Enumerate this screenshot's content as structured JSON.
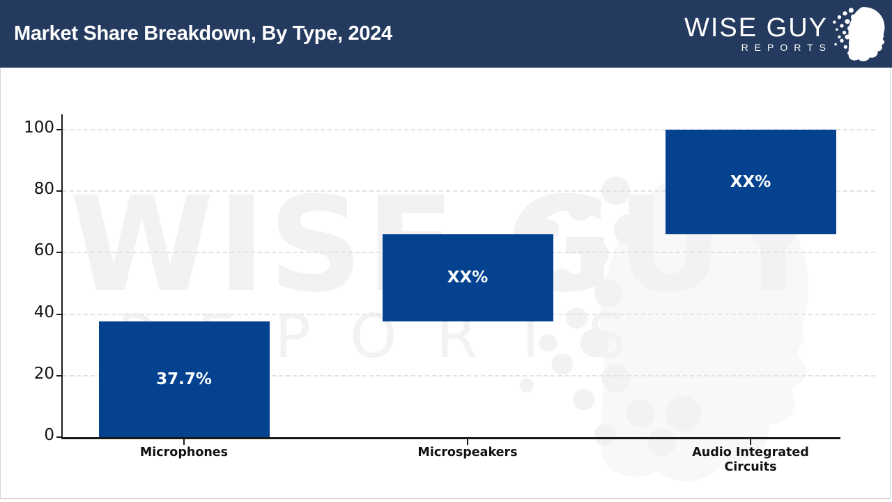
{
  "header": {
    "title": "Market Share Breakdown, By Type, 2024",
    "logo": {
      "brand_line1": "WISE GUY",
      "brand_line2": "REPORTS"
    }
  },
  "watermark": {
    "line1": "WISE GUY",
    "line2": "REPORTS"
  },
  "chart_data": {
    "type": "bar",
    "variant": "floating-segment-bars (stacked market-share breakdown)",
    "title": "Market Share Breakdown, By Type, 2024",
    "categories": [
      "Microphones",
      "Microspeakers",
      "Audio Integrated Circuits"
    ],
    "segments": [
      {
        "category": "Microphones",
        "start": 0,
        "end": 37.7,
        "label": "37.7%"
      },
      {
        "category": "Microspeakers",
        "start": 37.7,
        "end": 66,
        "label": "XX%"
      },
      {
        "category": "Audio Integrated Circuits",
        "start": 66,
        "end": 100,
        "label": "XX%"
      }
    ],
    "xlabel": "",
    "ylabel": "",
    "yticks": [
      0,
      20,
      40,
      60,
      80,
      100
    ],
    "ylim": [
      0,
      105
    ],
    "grid": "horizontal dashed, light gray",
    "legend": "none",
    "colors": {
      "bar": "#04418f",
      "bar_label": "#ffffff",
      "header_bg": "#243a5e",
      "axis": "#1a1a1a"
    }
  }
}
